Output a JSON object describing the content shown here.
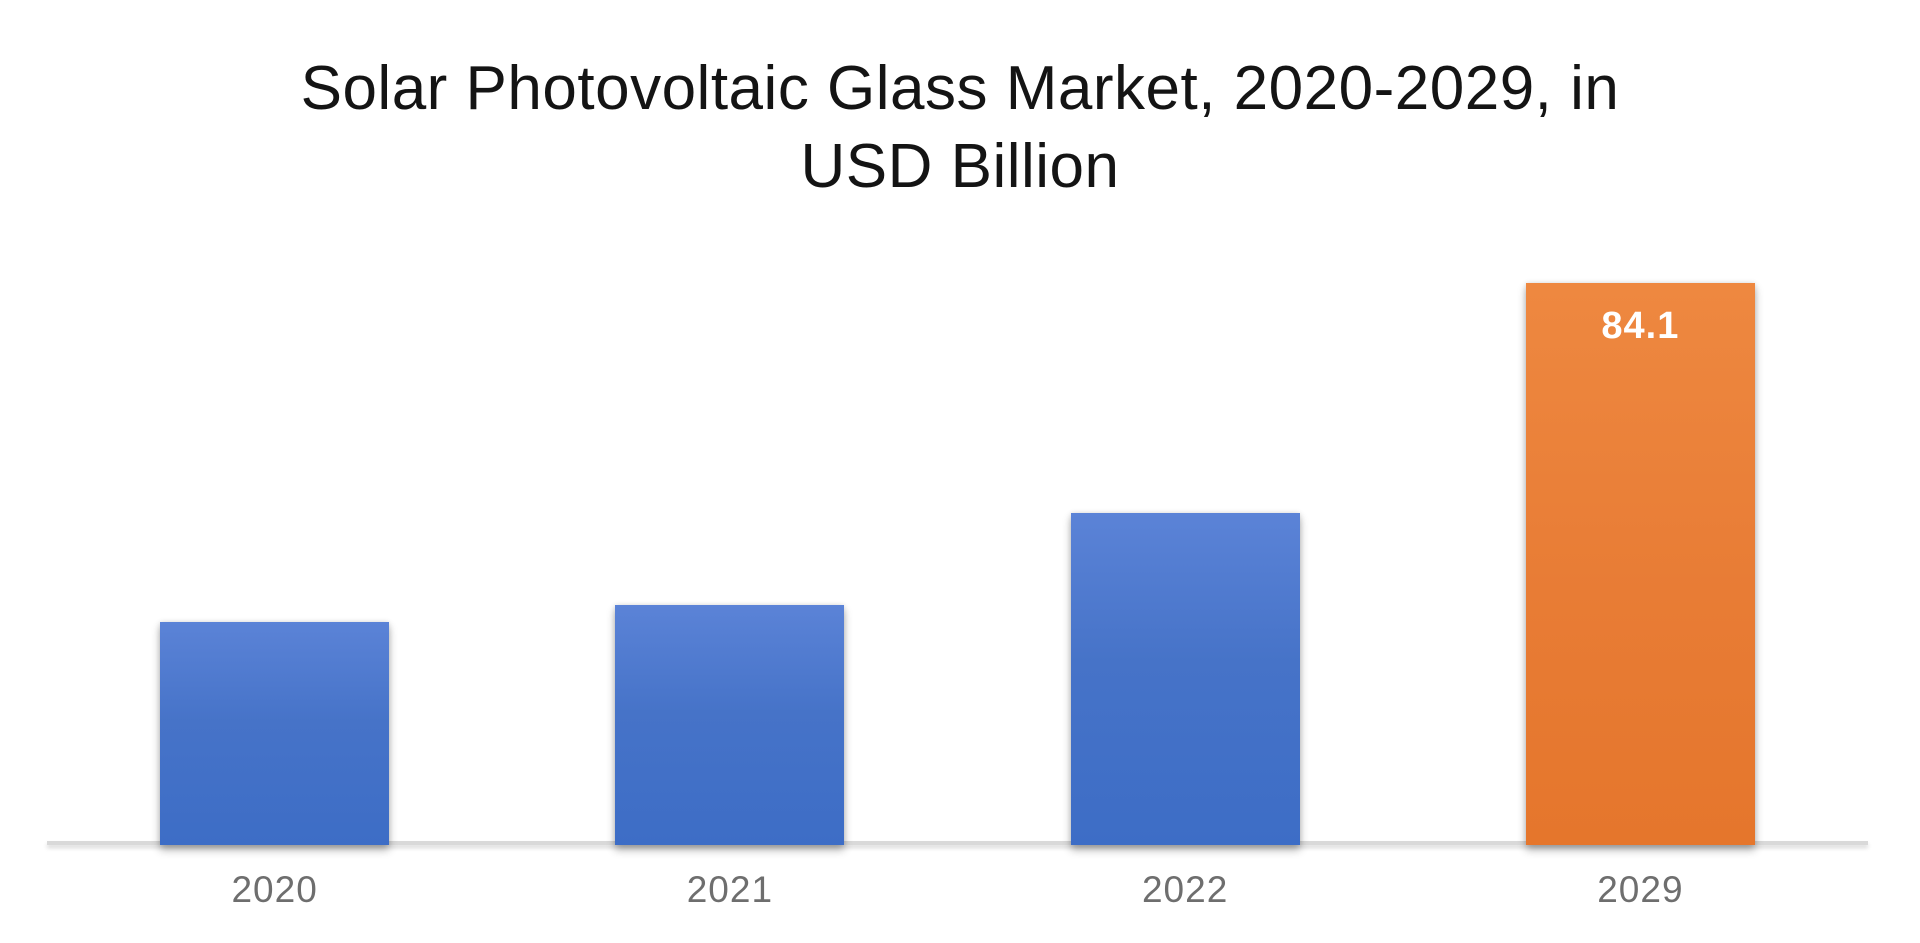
{
  "page": {
    "background_color": "#ffffff"
  },
  "title": {
    "full": "Solar Photovoltaic Glass Market, 2020-2029, in USD Billion",
    "lines": [
      "Solar Photovoltaic Glass Market, 2020-2029, in",
      "USD Billion"
    ],
    "color": "#141414"
  },
  "chart_data": {
    "type": "bar",
    "title": "Solar Photovoltaic Glass Market, 2020-2029, in USD Billion",
    "categories": [
      "2020",
      "2021",
      "2022",
      "2029"
    ],
    "values": [
      33.4,
      35.9,
      49.7,
      84.1
    ],
    "data_labels": [
      null,
      null,
      null,
      "84.1"
    ],
    "unit": "USD Billion",
    "xlabel": "",
    "ylabel": "",
    "ylim": [
      0,
      84.1
    ],
    "grid": false,
    "legend": false,
    "y_axis_visible": false,
    "highlight_index": 3,
    "colors": {
      "bar_default": "#4472C4",
      "bar_highlight": "#ED7D31",
      "data_label_text": "#ffffff",
      "axis_line": "#d9d9d9",
      "tick_label": "#6e6e6e"
    }
  }
}
